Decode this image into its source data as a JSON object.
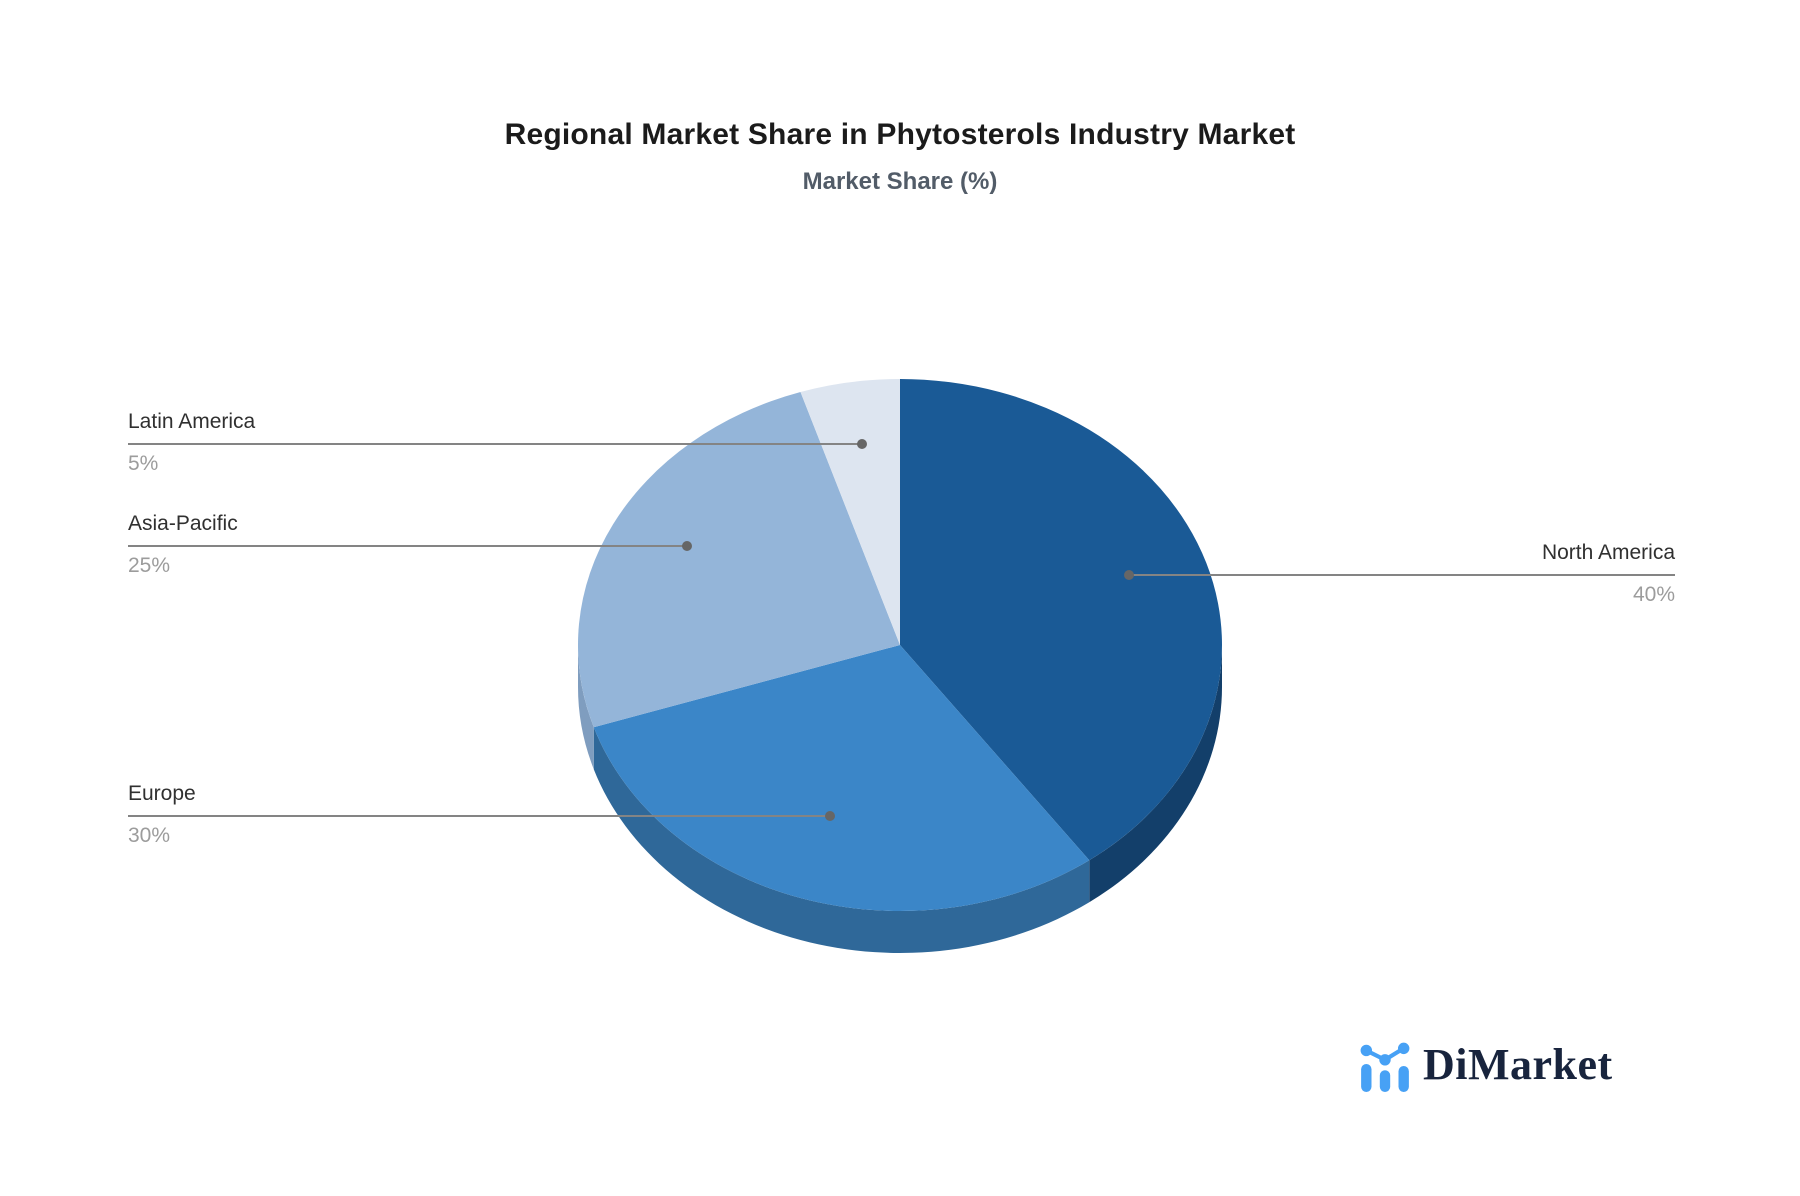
{
  "chart_data": {
    "type": "pie",
    "title": "Regional Market Share in Phytosterols Industry Market",
    "subtitle": "Market Share (%)",
    "unit": "%",
    "style": "3d-pie",
    "legend": "none",
    "labels": "leader-lines",
    "direction": "clockwise",
    "start_angle_deg": 0,
    "slices": [
      {
        "label": "North America",
        "value": 40,
        "value_label": "40%",
        "color": "#1a5a96",
        "side_color": "#133f6a"
      },
      {
        "label": "Europe",
        "value": 30,
        "value_label": "30%",
        "color": "#3b86c8",
        "side_color": "#2f6899"
      },
      {
        "label": "Asia-Pacific",
        "value": 25,
        "value_label": "25%",
        "color": "#94b5d9",
        "side_color": "#7f9dbf"
      },
      {
        "label": "Latin America",
        "value": 5,
        "value_label": "5%",
        "color": "#dde5f0",
        "side_color": "#c2cfe0"
      }
    ]
  },
  "branding": {
    "logo_text": "DiMarket",
    "logo_icon": "bar-line-chart-icon",
    "logo_text_color": "#18243d",
    "logo_accent_color": "#47a1f5"
  },
  "colors": {
    "background": "#ffffff",
    "title_text": "#1b1b1b",
    "subtitle_text": "#525c68",
    "label_text": "#303030",
    "value_text": "#9c9c9c",
    "leader_line": "#848484",
    "leader_dot": "#666666"
  }
}
